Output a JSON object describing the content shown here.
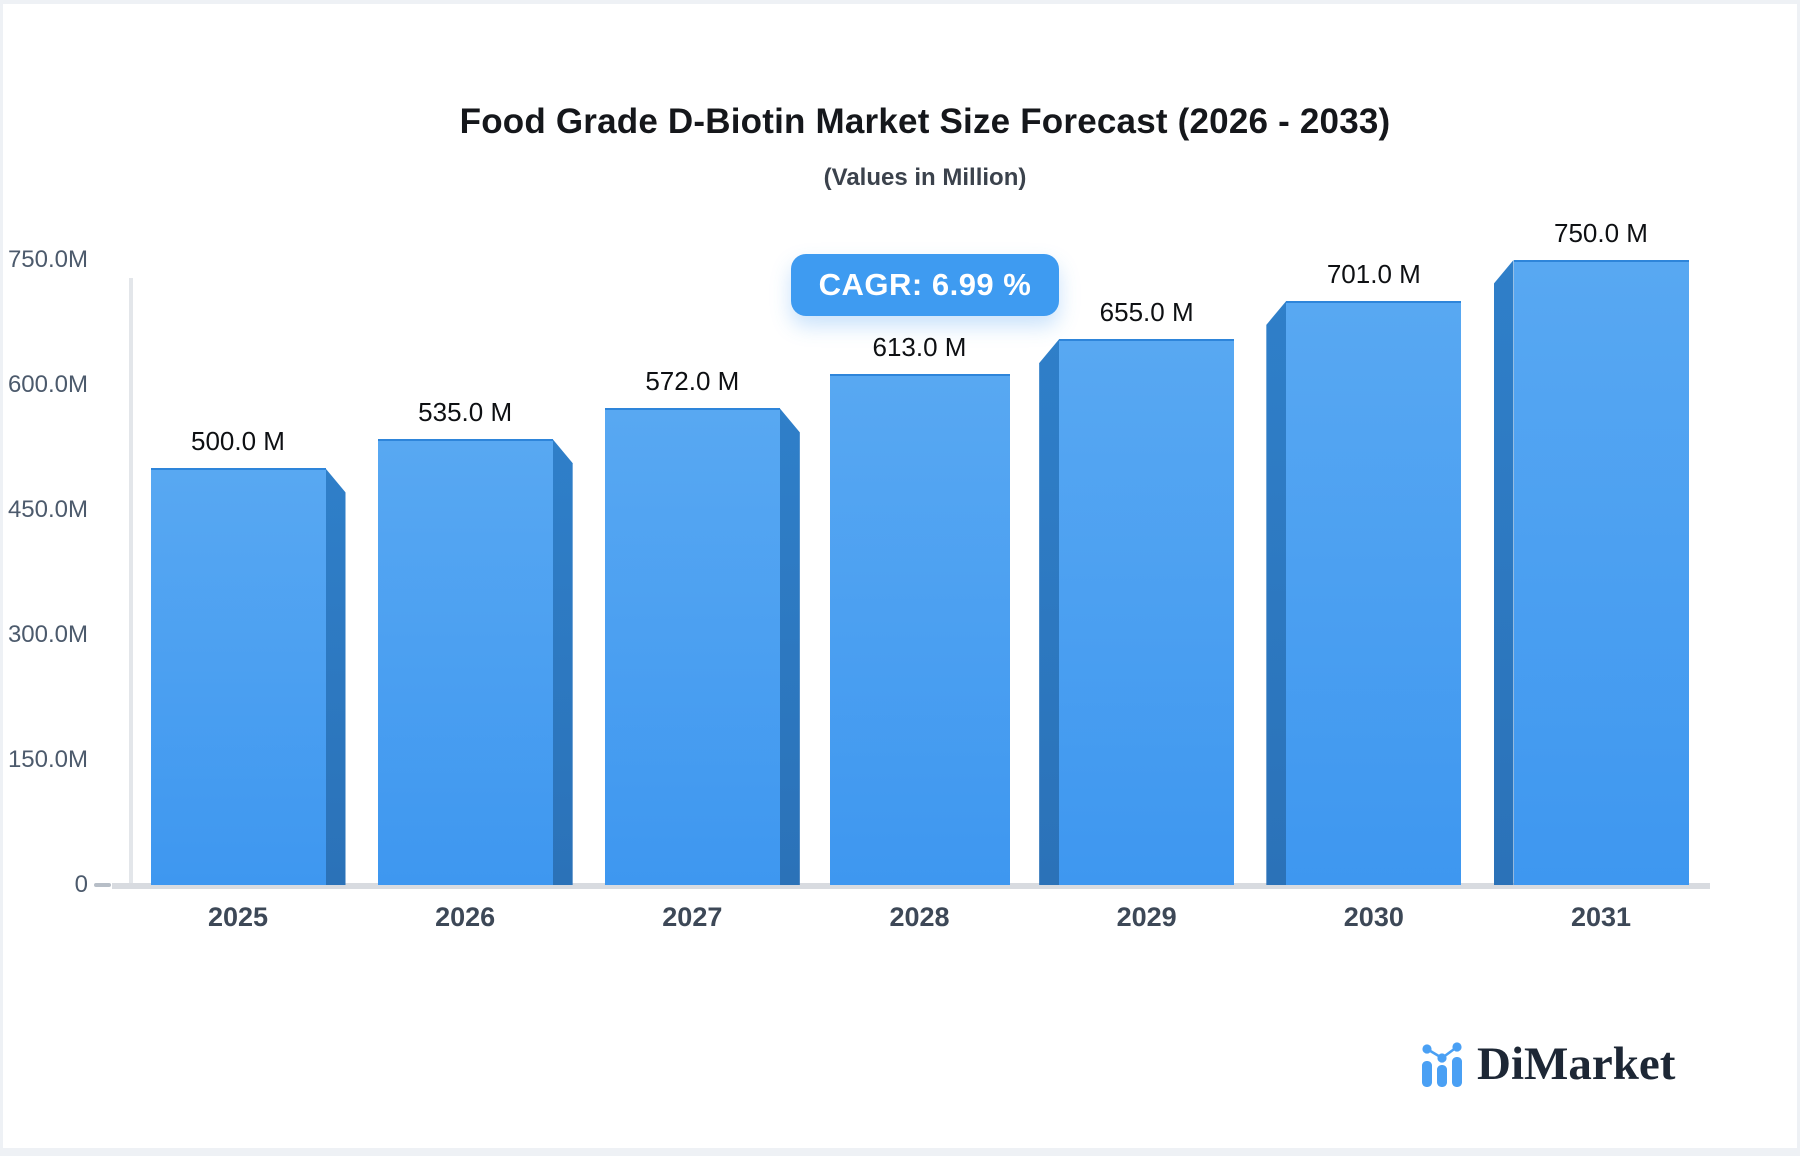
{
  "page": {
    "background": "#eef1f5",
    "card_background": "#ffffff"
  },
  "header": {
    "title": "Food Grade D-Biotin Market Size Forecast (2026 - 2033)",
    "subtitle": "(Values in Million)",
    "cagr_badge": {
      "label": "CAGR: 6.99 %",
      "background": "#3E9BF1",
      "text_color": "#ffffff"
    }
  },
  "chart_data": {
    "type": "bar",
    "title": "Food Grade D-Biotin Market Size Forecast (2026 - 2033)",
    "subtitle": "(Values in Million)",
    "unit": "Million",
    "categories": [
      "2025",
      "2026",
      "2027",
      "2028",
      "2029",
      "2030",
      "2031"
    ],
    "values": [
      500.0,
      535.0,
      572.0,
      613.0,
      655.0,
      701.0,
      750.0
    ],
    "value_labels": [
      "500.0 M",
      "535.0 M",
      "572.0 M",
      "613.0 M",
      "655.0 M",
      "701.0 M",
      "750.0 M"
    ],
    "ylim": [
      0,
      750
    ],
    "yticks": [
      {
        "value": 750,
        "label": "750.0M"
      },
      {
        "value": 600,
        "label": "600.0M"
      },
      {
        "value": 450,
        "label": "450.0M"
      },
      {
        "value": 300,
        "label": "300.0M"
      },
      {
        "value": 150,
        "label": "150.0M"
      },
      {
        "value": 0,
        "label": "0"
      }
    ],
    "grid": false,
    "legend": false,
    "bar_style": {
      "face_top_color": "#58A8F2",
      "face_bottom_color": "#3E97F0",
      "face_edge_color": "#2E85DA",
      "side_color_top": "#2F7FC9",
      "side_color_bottom": "#2B72B8",
      "effect": "3d-bevel-toward-center"
    },
    "axis": {
      "baseline_color": "#D8DBE0",
      "tick_dash_color": "#B7BEC7",
      "ytick_label_color": "#4C5A6C",
      "xtick_label_color": "#3D4857"
    }
  },
  "footer": {
    "brand": "DiMarket",
    "brand_color": "#1D2735",
    "logo_icon": "mini-bar-chart-icon",
    "logo_color": "#4AA0F4"
  }
}
